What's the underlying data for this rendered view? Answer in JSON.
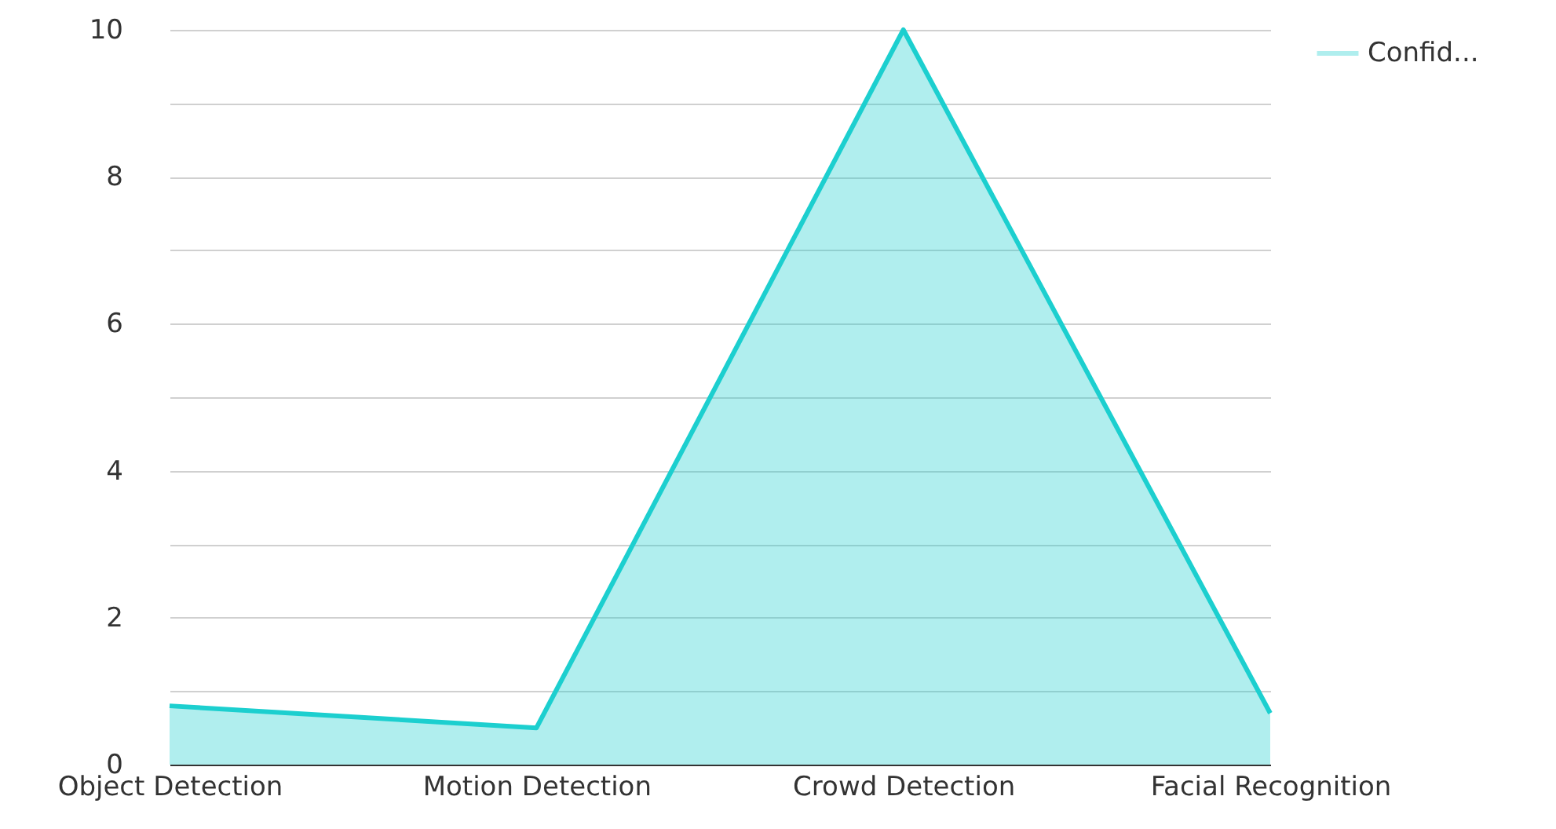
{
  "chart_data": {
    "type": "area",
    "categories": [
      "Object Detection",
      "Motion Detection",
      "Crowd Detection",
      "Facial Recognition"
    ],
    "series": [
      {
        "name": "Confid...",
        "color": "#1ccfcf",
        "values": [
          0.8,
          0.5,
          10,
          0.7
        ]
      }
    ],
    "ylim": [
      0,
      10
    ],
    "yticks": [
      0,
      {
        "value": 1,
        "label": null
      },
      2,
      {
        "value": 3,
        "label": null
      },
      4,
      {
        "value": 5,
        "label": null
      },
      6,
      {
        "value": 7,
        "label": null
      },
      8,
      {
        "value": 9,
        "label": null
      },
      10
    ],
    "grid": "y",
    "legend": "top right"
  }
}
